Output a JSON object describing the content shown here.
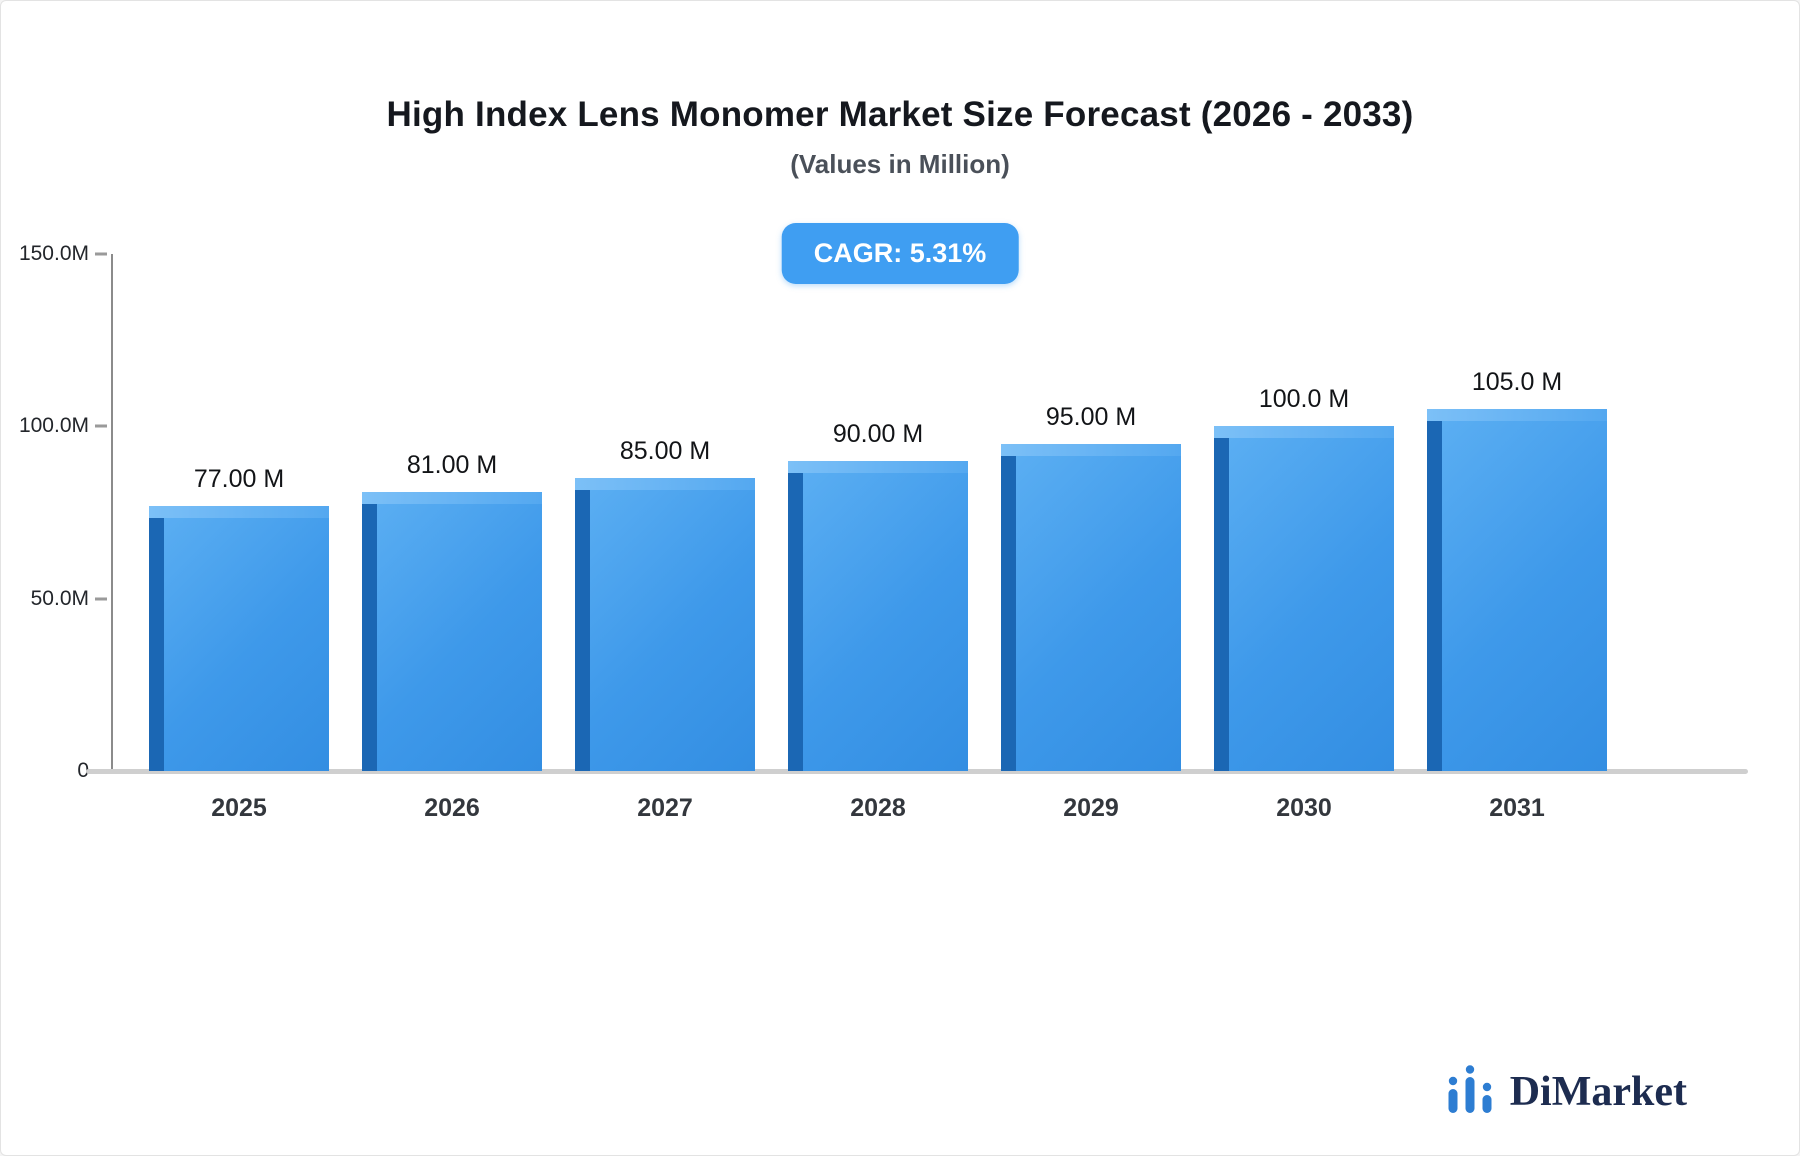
{
  "header": {
    "title": "High Index Lens Monomer Market Size Forecast (2026 - 2033)",
    "subtitle": "(Values in Million)"
  },
  "badge": {
    "label": "CAGR: 5.31%",
    "bg_color": "#3f9ef2",
    "text_color": "#ffffff"
  },
  "chart_data": {
    "type": "bar",
    "title": "High Index Lens Monomer Market Size Forecast (2026 - 2033)",
    "subtitle": "(Values in Million)",
    "categories": [
      "2025",
      "2026",
      "2027",
      "2028",
      "2029",
      "2030",
      "2031"
    ],
    "values": [
      77,
      81,
      85,
      90,
      95,
      100,
      105
    ],
    "value_labels": [
      "77.00 M",
      "81.00 M",
      "85.00 M",
      "90.00 M",
      "95.00 M",
      "100.0 M",
      "105.0 M"
    ],
    "xlabel": "",
    "ylabel": "",
    "ylim": [
      0,
      150
    ],
    "yticks": [
      {
        "value": 150,
        "label": "150.0M"
      },
      {
        "value": 100,
        "label": "100.0M"
      },
      {
        "value": 50,
        "label": "50.0M"
      },
      {
        "value": 0,
        "label": "0"
      }
    ],
    "grid": false,
    "legend": "none",
    "bar_color_main": "#3e99ea",
    "bar_color_light": "#5db0f3",
    "bar_color_edge": "#1b67b4",
    "axis_color": "#8b8b8b",
    "baseline_color": "#cfcfcf"
  },
  "footer": {
    "brand": "DiMarket",
    "brand_color": "#1d2c50",
    "icon_color": "#2d7dd2"
  }
}
